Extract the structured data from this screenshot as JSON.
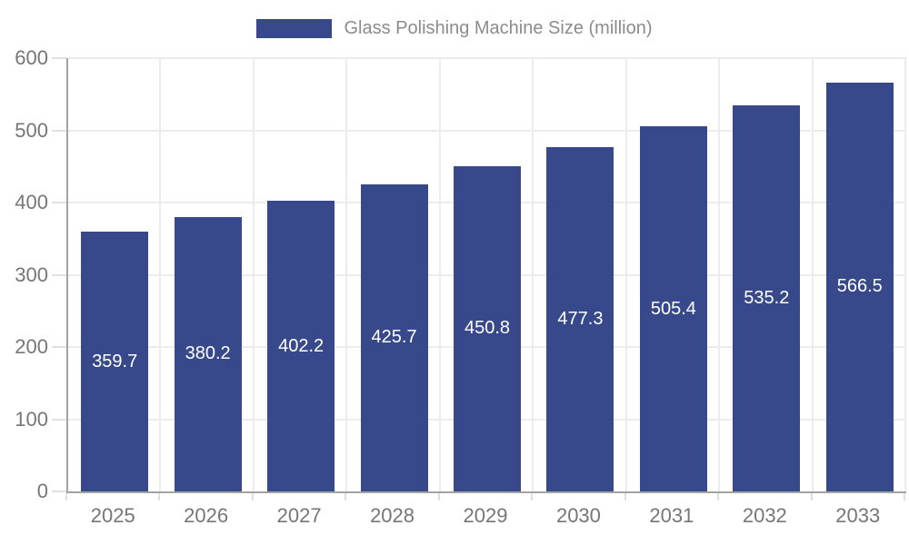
{
  "legend": {
    "label": "Glass Polishing Machine Size (million)"
  },
  "chart_data": {
    "type": "bar",
    "title": "Glass Polishing Machine Size (million)",
    "categories": [
      "2025",
      "2026",
      "2027",
      "2028",
      "2029",
      "2030",
      "2031",
      "2032",
      "2033"
    ],
    "series": [
      {
        "name": "Glass Polishing Machine Size (million)",
        "values": [
          359.7,
          380.2,
          402.2,
          425.7,
          450.8,
          477.3,
          505.4,
          535.2,
          566.5
        ]
      }
    ],
    "xlabel": "",
    "ylabel": "",
    "ylim": [
      0,
      600
    ],
    "yticks": [
      0,
      100,
      200,
      300,
      400,
      500,
      600
    ],
    "grid": true,
    "legend_position": "top-center",
    "value_labels": "inside-center",
    "colors": {
      "bar": "#37498b",
      "axis_line": "#a3a3a3",
      "grid_line": "#ececec",
      "tick_line": "#e0e0e0",
      "axis_label_text": "#767676",
      "legend_text": "#8b8b8b",
      "value_label_text": "#ffffff",
      "background": "#ffffff"
    }
  }
}
